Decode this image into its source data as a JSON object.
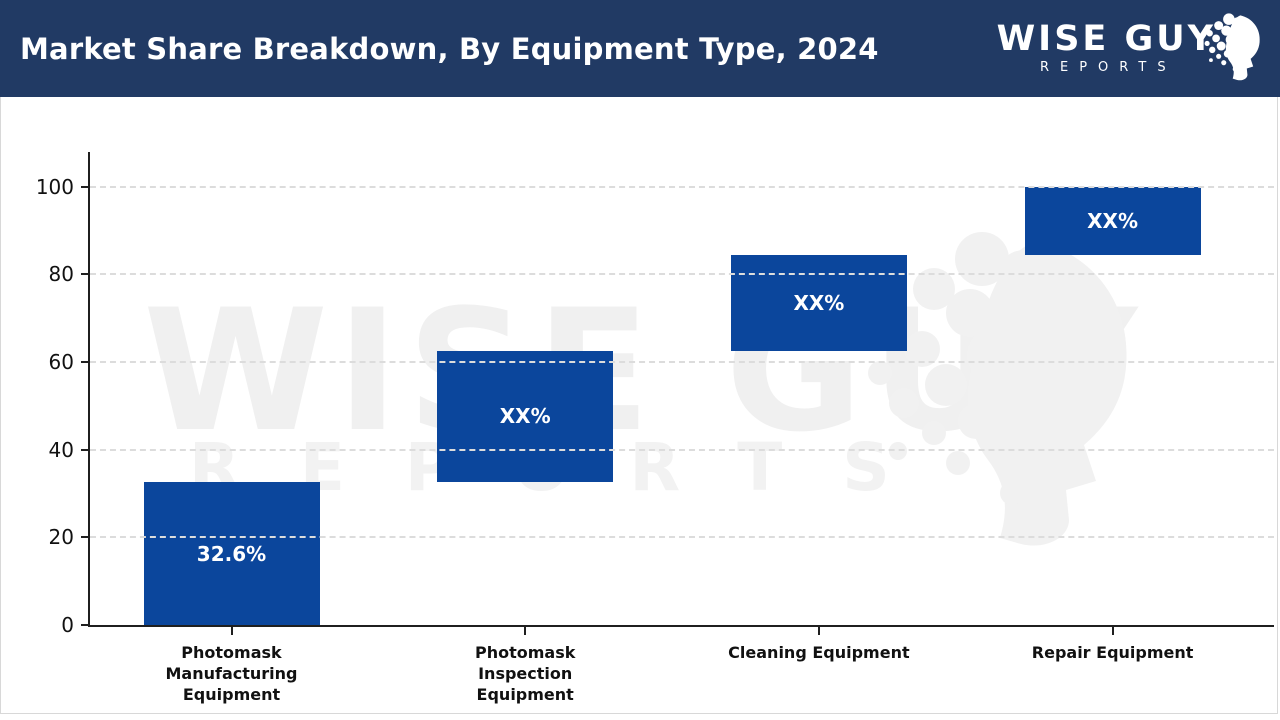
{
  "header": {
    "title": "Market Share Breakdown, By Equipment Type, 2024",
    "bg_color": "#213A64",
    "logo": {
      "line1": "WISE GUY",
      "line2": "REPORTS"
    }
  },
  "watermark": {
    "line1": "WISE GUY",
    "line2": "REPORTS"
  },
  "chart_data": {
    "type": "bar",
    "variant": "waterfall",
    "title": "Market Share Breakdown, By Equipment Type, 2024",
    "categories": [
      "Photomask Manufacturing Equipment",
      "Photomask Inspection Equipment",
      "Cleaning Equipment",
      "Repair Equipment"
    ],
    "category_lines": [
      [
        "Photomask",
        "Manufacturing",
        "Equipment"
      ],
      [
        "Photomask",
        "Inspection",
        "Equipment"
      ],
      [
        "Cleaning Equipment"
      ],
      [
        "Repair Equipment"
      ]
    ],
    "segments": [
      {
        "start": 0,
        "end": 32.6,
        "label": "32.6%"
      },
      {
        "start": 32.6,
        "end": 62.6,
        "label": "XX%"
      },
      {
        "start": 62.6,
        "end": 84.3,
        "label": "XX%"
      },
      {
        "start": 84.3,
        "end": 100,
        "label": "XX%"
      }
    ],
    "ylabel": "",
    "xlabel": "",
    "yticks": [
      0,
      20,
      40,
      60,
      80,
      100
    ],
    "ylim": [
      0,
      107
    ],
    "grid": "horizontal-dashed",
    "legend": "none",
    "bar_color": "#0B469C",
    "bar_label_color": "#ffffff",
    "grid_color": "#dcdcdc",
    "axis_color": "#1f1f1f"
  }
}
